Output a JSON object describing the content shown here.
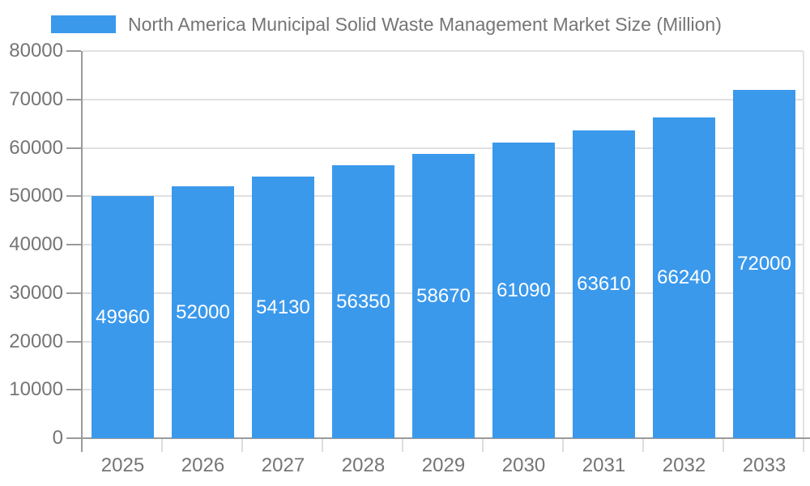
{
  "chart_data": {
    "type": "bar",
    "title": "North America Municipal Solid Waste Management Market Size (Million)",
    "categories": [
      "2025",
      "2026",
      "2027",
      "2028",
      "2029",
      "2030",
      "2031",
      "2032",
      "2033"
    ],
    "values": [
      49960,
      52000,
      54130,
      56350,
      58670,
      61090,
      63610,
      66240,
      72000
    ],
    "series_name": "North America Municipal Solid Waste Management Market Size (Million)",
    "xlabel": "",
    "ylabel": "",
    "ylim": [
      0,
      80000
    ],
    "ytick_interval": 10000,
    "ytick_labels": [
      "0",
      "10000",
      "20000",
      "30000",
      "40000",
      "50000",
      "60000",
      "70000",
      "80000"
    ],
    "grid": true,
    "legend_position": "top-left",
    "value_label_position": "inside-center"
  },
  "colors": {
    "bar": "#3B99EC",
    "value_label_text": "#FFFFFF",
    "axis_text": "#757575",
    "legend_text": "#757575",
    "grid_line": "#E0E0E0",
    "axis_line": "#9A9A9A",
    "minor_tick": "#DDDDDD",
    "plot_right_border": "#E3E3E3",
    "background": "#FFFFFF"
  }
}
